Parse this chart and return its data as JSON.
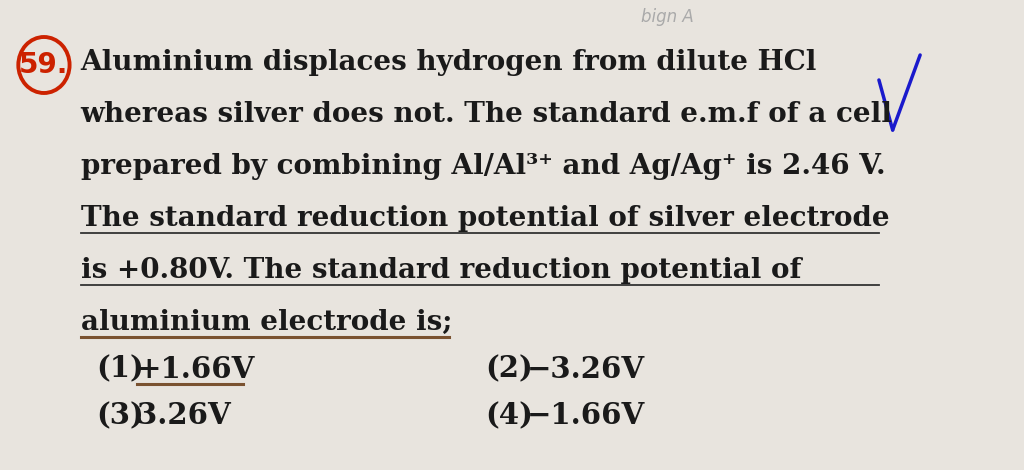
{
  "background_color": "#e8e4de",
  "header_text": "bign A",
  "text_color": "#1a1a1a",
  "circle_color": "#cc2200",
  "underline_color_dark": "#333333",
  "underline_color_brown": "#7a5230",
  "font_size_main": 20,
  "font_size_options": 21,
  "font_size_number": 20,
  "line1": "Aluminium displaces hydrogen from dilute HCl",
  "line2": "whereas silver does not. The standard e.m.f of a cell",
  "line3": "prepared by combining Al/Al³⁺ and Ag/Ag⁺ is 2.46 V.",
  "line4": "The standard reduction potential of silver electrode",
  "line5": "is +0.80V. The standard reduction potential of",
  "line6": "aluminium electrode is;",
  "opt1_label": "(1)",
  "opt1_val": "+1.66V",
  "opt2_label": "(2)",
  "opt2_val": "−3.26V",
  "opt3_label": "(3)",
  "opt3_val": "3.26V",
  "opt4_label": "(4)",
  "opt4_val": "−1.66V"
}
